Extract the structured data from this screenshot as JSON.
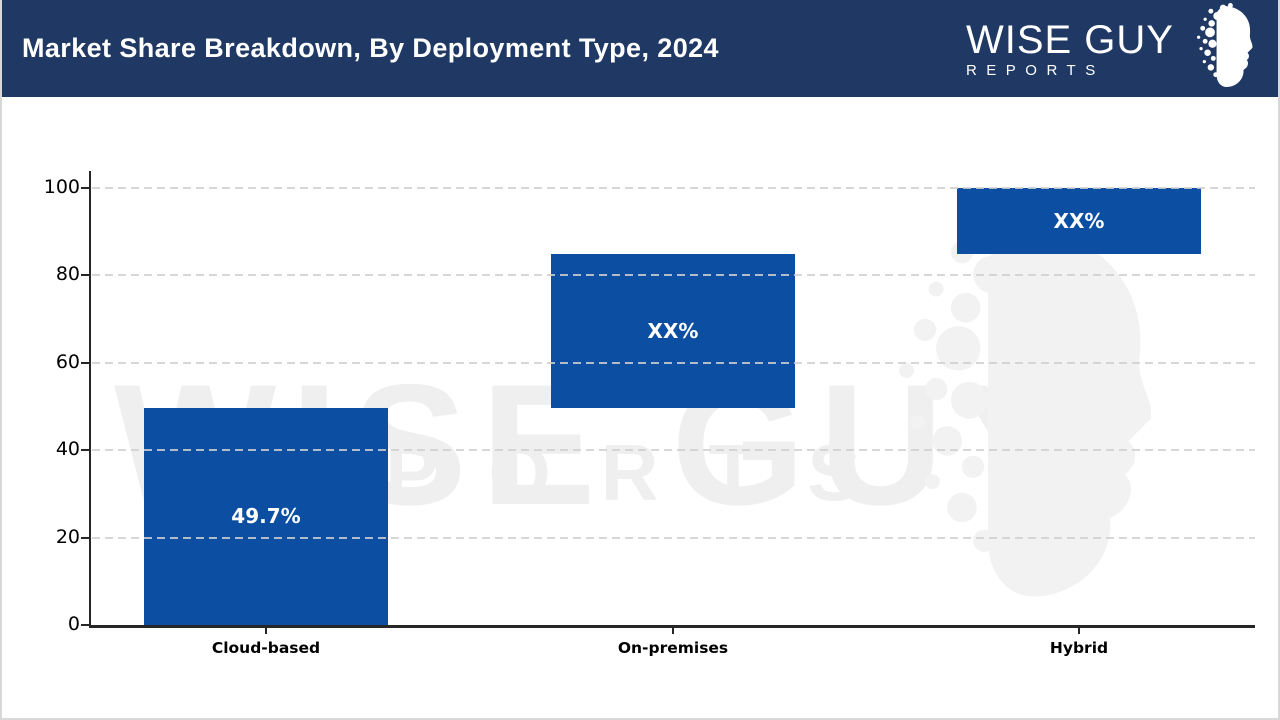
{
  "header": {
    "title": "Market Share Breakdown, By Deployment Type, 2024",
    "bg_color": "#1f3864",
    "logo": {
      "name": "WISE GUY",
      "sub": "REPORTS"
    }
  },
  "watermark": {
    "line1": "WISE GUY",
    "line2": "REPORTS"
  },
  "chart_data": {
    "type": "bar",
    "subtype": "stacked-breakdown-floating-bars",
    "title": "Market Share Breakdown, By Deployment Type, 2024",
    "categories": [
      "Cloud-based",
      "On-premises",
      "Hybrid"
    ],
    "series": [
      {
        "name": "Cloud-based",
        "start": 0,
        "end": 49.7,
        "label": "49.7%"
      },
      {
        "name": "On-premises",
        "start": 49.7,
        "end": 84.8,
        "label": "XX%"
      },
      {
        "name": "Hybrid",
        "start": 84.8,
        "end": 100,
        "label": "XX%"
      }
    ],
    "xlabel": "",
    "ylabel": "",
    "yticks": [
      0,
      20,
      40,
      60,
      80,
      100
    ],
    "ylim": [
      0,
      104
    ],
    "grid": {
      "axis": "y",
      "style": "dashed",
      "color": "#d9d9d9"
    },
    "legend": "none",
    "bar_color": "#0b4ea2",
    "bar_label_color": "#ffffff",
    "axis_color": "#262626",
    "tick_label_color": "#000000"
  }
}
